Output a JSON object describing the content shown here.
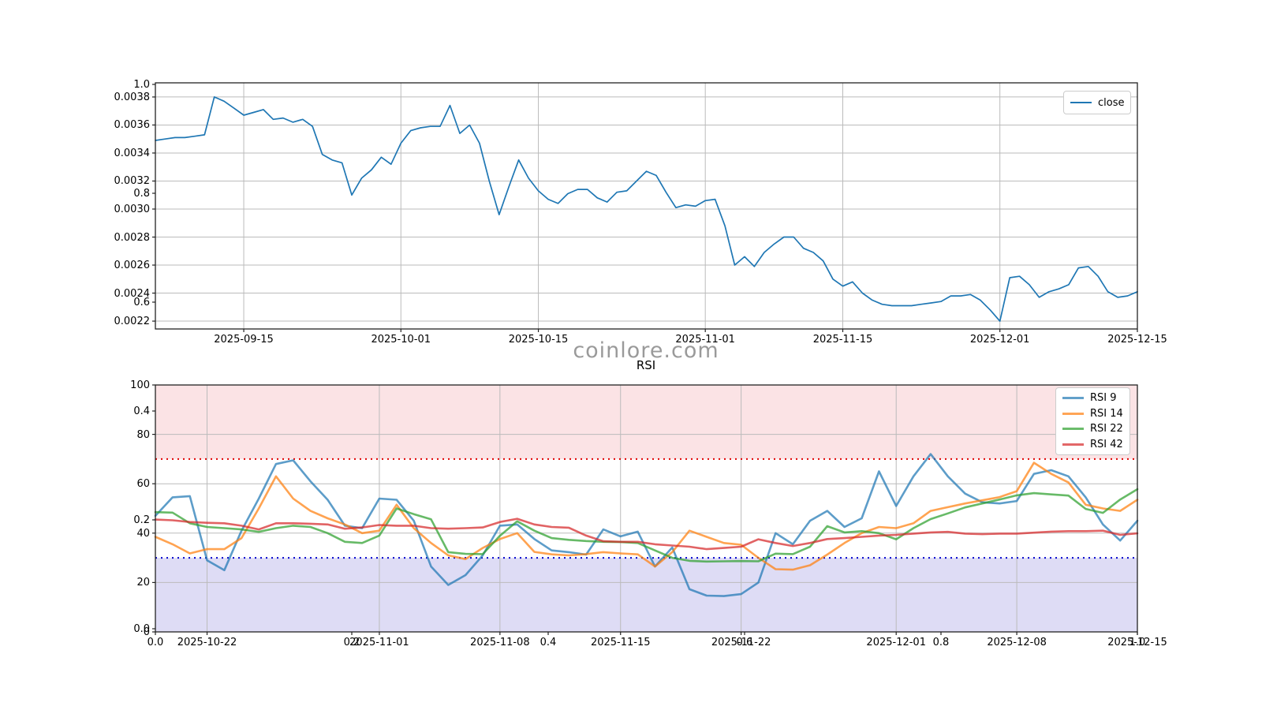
{
  "watermark": {
    "text": "coinlore.com"
  },
  "price_chart": {
    "legend": [
      {
        "label": "close",
        "color": "#1f77b4",
        "thickness": 2,
        "opacity": 1
      }
    ]
  },
  "rsi_chart": {
    "title": "RSI",
    "legend": [
      {
        "label": "RSI 9",
        "color": "#1f77b4",
        "thickness": 3,
        "opacity": 0.7
      },
      {
        "label": "RSI 14",
        "color": "#ff7f0e",
        "thickness": 3,
        "opacity": 0.7
      },
      {
        "label": "RSI 22",
        "color": "#2ca02c",
        "thickness": 3,
        "opacity": 0.7
      },
      {
        "label": "RSI 42",
        "color": "#d62728",
        "thickness": 3,
        "opacity": 0.7
      }
    ]
  },
  "overlay_axis": {
    "x_ticks": [
      "0.0",
      "0.2",
      "0.4",
      "0.6",
      "0.8",
      "1.0"
    ],
    "y_ticks": [
      "1.0",
      "0.8",
      "0.6",
      "0.4",
      "0.2",
      "0.0"
    ]
  },
  "colors": {
    "close_line": "#1f77b4",
    "rsi9": "#1f77b4",
    "rsi14": "#ff7f0e",
    "rsi22": "#2ca02c",
    "rsi42": "#d62728",
    "overbought_band": "#fbe3e5",
    "oversold_band": "#dedcf5",
    "overbought_line": "#e00000",
    "oversold_line": "#0000cc",
    "grid": "#bbbbbb",
    "spine": "#222222",
    "watermark": "#9a9a9a"
  },
  "chart_data": [
    {
      "id": "price",
      "type": "line",
      "title": "",
      "grid": true,
      "legend_position": "upper right",
      "ylim": [
        0.002144,
        0.003901
      ],
      "y_ticks": [
        0.0022,
        0.0024,
        0.0026,
        0.0028,
        0.003,
        0.0032,
        0.0034,
        0.0036,
        0.0038
      ],
      "x_start": "2025-09-06",
      "x_end": "2025-12-15",
      "x_tick_dates": [
        "2025-09-15",
        "2025-10-01",
        "2025-10-15",
        "2025-11-01",
        "2025-11-15",
        "2025-12-01",
        "2025-12-15"
      ],
      "series": [
        {
          "name": "close",
          "color": "#1f77b4",
          "width": 1.7,
          "opacity": 1,
          "start_date": "2025-09-06",
          "interval_days": 1,
          "values": [
            0.00349,
            0.0035,
            0.00351,
            0.00351,
            0.00352,
            0.00353,
            0.0038,
            0.00377,
            0.00372,
            0.00367,
            0.00369,
            0.00371,
            0.00364,
            0.00365,
            0.00362,
            0.00364,
            0.00359,
            0.00339,
            0.00335,
            0.00333,
            0.0031,
            0.00322,
            0.00328,
            0.00337,
            0.00332,
            0.00347,
            0.00356,
            0.00358,
            0.00359,
            0.00359,
            0.00374,
            0.00354,
            0.0036,
            0.00347,
            0.0032,
            0.00296,
            0.00316,
            0.00335,
            0.00322,
            0.00313,
            0.00307,
            0.00304,
            0.00311,
            0.00314,
            0.00314,
            0.00308,
            0.00305,
            0.00312,
            0.00313,
            0.0032,
            0.00327,
            0.00324,
            0.00312,
            0.00301,
            0.00303,
            0.00302,
            0.00306,
            0.00307,
            0.00288,
            0.0026,
            0.00266,
            0.00259,
            0.00269,
            0.00275,
            0.0028,
            0.0028,
            0.00272,
            0.00269,
            0.00263,
            0.0025,
            0.00245,
            0.00248,
            0.0024,
            0.00235,
            0.00232,
            0.00231,
            0.00231,
            0.00231,
            0.00232,
            0.00233,
            0.00234,
            0.00238,
            0.00238,
            0.00239,
            0.00235,
            0.00228,
            0.0022,
            0.00251,
            0.00252,
            0.00246,
            0.00237,
            0.00241,
            0.00243,
            0.00246,
            0.00258,
            0.00259,
            0.00252,
            0.00241,
            0.00237,
            0.00238,
            0.00241
          ]
        }
      ]
    },
    {
      "id": "rsi",
      "type": "line",
      "title": "RSI",
      "grid": true,
      "legend_position": "upper right",
      "ylim": [
        0,
        100
      ],
      "y_ticks": [
        0,
        20,
        40,
        60,
        80,
        100
      ],
      "x_start": "2025-10-19",
      "x_end": "2025-12-15",
      "x_tick_dates": [
        "2025-10-22",
        "2025-11-01",
        "2025-11-08",
        "2025-11-15",
        "2025-11-22",
        "2025-12-01",
        "2025-12-08",
        "2025-12-15"
      ],
      "overbought_band": [
        70,
        100
      ],
      "oversold_band": [
        0,
        30
      ],
      "hlines": [
        {
          "y": 70,
          "style": "dotted",
          "color": "#e00000"
        },
        {
          "y": 30,
          "style": "dotted",
          "color": "#0000cc"
        }
      ],
      "series": [
        {
          "name": "RSI 9",
          "color": "#1f77b4",
          "width": 2.6,
          "opacity": 0.72,
          "start_date": "2025-10-19",
          "interval_days": 1,
          "values": [
            47,
            54.5,
            55,
            29,
            25,
            41,
            54,
            68,
            69.5,
            61,
            53.5,
            43,
            42,
            54,
            53.5,
            45,
            26.5,
            19,
            23,
            31,
            43,
            43.5,
            37.6,
            33,
            32.3,
            31.3,
            41.5,
            38.7,
            40.6,
            26.5,
            34.2,
            17.3,
            14.7,
            14.5,
            15.3,
            20,
            40,
            35.5,
            45,
            49,
            42.5,
            46,
            65,
            51,
            63,
            72,
            63,
            56,
            52.5,
            52,
            53,
            64,
            65.5,
            63,
            54.5,
            43.5,
            37,
            45
          ]
        },
        {
          "name": "RSI 14",
          "color": "#ff7f0e",
          "width": 2.6,
          "opacity": 0.72,
          "start_date": "2025-10-19",
          "interval_days": 1,
          "values": [
            38.5,
            35.5,
            31.8,
            33.5,
            33.5,
            38,
            50,
            63,
            54,
            49,
            46,
            43.5,
            40,
            41,
            51.5,
            42,
            36,
            31,
            29.5,
            34,
            37.6,
            40,
            32.4,
            31.4,
            31,
            31.5,
            32.3,
            31.8,
            31.4,
            26.5,
            32.3,
            41,
            38.5,
            36,
            35.3,
            30,
            25.4,
            25.2,
            27,
            31.3,
            36,
            40,
            42.5,
            42,
            44,
            49,
            50.5,
            52,
            53.3,
            54.6,
            57,
            68.5,
            64,
            60.5,
            51.5,
            50,
            49,
            53.5
          ]
        },
        {
          "name": "RSI 22",
          "color": "#2ca02c",
          "width": 2.6,
          "opacity": 0.72,
          "start_date": "2025-10-19",
          "interval_days": 1,
          "values": [
            48.5,
            48.3,
            44,
            42.5,
            42,
            41.5,
            40.5,
            42,
            43,
            42.5,
            40,
            36.5,
            36,
            39,
            50,
            47.7,
            45.6,
            32.3,
            31.6,
            31.5,
            38.9,
            44.8,
            41,
            38,
            37.3,
            36.8,
            36.5,
            36.4,
            36,
            33,
            30,
            28.8,
            28.5,
            28.6,
            28.7,
            28.6,
            31.7,
            31.5,
            34.5,
            42.8,
            40.3,
            40.8,
            40,
            37.5,
            42,
            45.7,
            48,
            50.4,
            52,
            53.6,
            55.3,
            56.2,
            55.7,
            55.2,
            49.8,
            48.2,
            53.6,
            57.8
          ]
        },
        {
          "name": "RSI 42",
          "color": "#d62728",
          "width": 2.6,
          "opacity": 0.72,
          "start_date": "2025-10-19",
          "interval_days": 1,
          "values": [
            45.5,
            45.2,
            44.5,
            44.2,
            44,
            43,
            41.5,
            44,
            44,
            43.8,
            43.5,
            41.8,
            42.3,
            43.3,
            43,
            43,
            42,
            41.8,
            42,
            42.3,
            44.5,
            45.8,
            43.5,
            42.5,
            42.2,
            39,
            36.7,
            36.5,
            36.5,
            35.5,
            35,
            34.5,
            33.5,
            34,
            34.5,
            37.5,
            36,
            34.8,
            36,
            37.6,
            38,
            38.5,
            39,
            39.3,
            39.8,
            40.3,
            40.5,
            39.8,
            39.6,
            39.8,
            39.8,
            40.2,
            40.6,
            40.8,
            40.8,
            41,
            39.3,
            39.9
          ]
        }
      ]
    }
  ]
}
